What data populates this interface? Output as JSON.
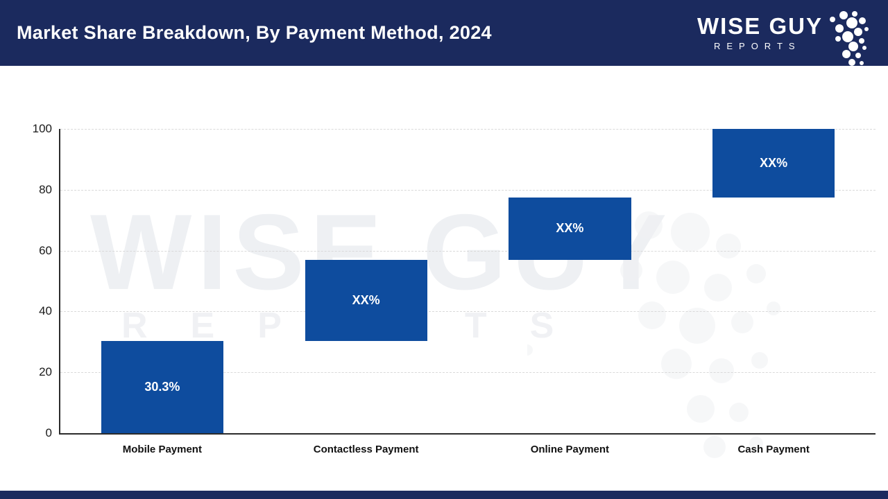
{
  "header": {
    "title": "Market Share Breakdown, By Payment Method, 2024",
    "logo": {
      "line1": "WISE GUY",
      "line2": "REPORTS"
    }
  },
  "watermark": {
    "line1": "WISE GUY",
    "line2": "REPORTS"
  },
  "colors": {
    "header_bg": "#1b2a5e",
    "bar": "#0e4c9e",
    "bar_label_text": "#ffffff",
    "grid": "#d9d9d9",
    "axis": "#2b2b2b"
  },
  "chart_data": {
    "type": "bar",
    "subtype": "waterfall",
    "title": "Market Share Breakdown, By Payment Method, 2024",
    "categories": [
      "Mobile Payment",
      "Contactless Payment",
      "Online Payment",
      "Cash Payment"
    ],
    "series": [
      {
        "name": "Market Share (%)",
        "segments": [
          {
            "category": "Mobile Payment",
            "start": 0,
            "end": 30.3,
            "label": "30.3%"
          },
          {
            "category": "Contactless Payment",
            "start": 30.3,
            "end": 57,
            "label": "XX%"
          },
          {
            "category": "Online Payment",
            "start": 57,
            "end": 77.5,
            "label": "XX%"
          },
          {
            "category": "Cash Payment",
            "start": 77.5,
            "end": 100,
            "label": "XX%"
          }
        ]
      }
    ],
    "xlabel": "",
    "ylabel": "",
    "ylim": [
      0,
      100
    ],
    "yticks": [
      0,
      20,
      40,
      60,
      80,
      100
    ],
    "grid": true,
    "grid_style": "dashed",
    "legend": false
  }
}
